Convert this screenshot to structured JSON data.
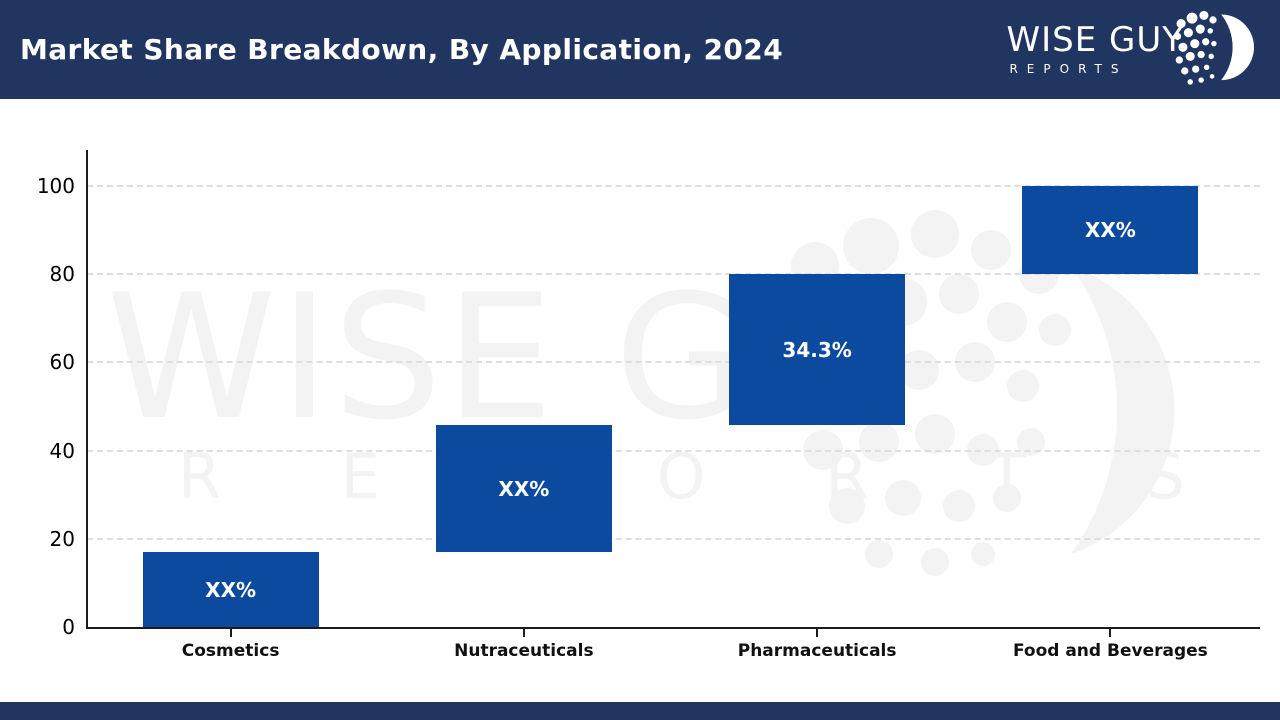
{
  "header": {
    "title": "Market Share Breakdown, By Application, 2024",
    "bg_color": "#213561",
    "logo": {
      "line1": "WISE GUY",
      "line2": "REPORTS"
    }
  },
  "watermark": {
    "line1": "WISE GU",
    "line2": "R E P O R T S"
  },
  "chart_data": {
    "type": "bar",
    "subtype": "waterfall-floating-bars",
    "title": "Market Share Breakdown, By Application, 2024",
    "xlabel": "",
    "ylabel": "",
    "ylim": [
      0,
      108
    ],
    "yticks": [
      0,
      20,
      40,
      60,
      80,
      100
    ],
    "grid": "horizontal dashed",
    "legend": "none",
    "bar_color": "#0b4a9e",
    "label_color": "#ffffff",
    "bars": [
      {
        "category": "Cosmetics",
        "start": 0,
        "end": 17,
        "value": 17,
        "label": "XX%"
      },
      {
        "category": "Nutraceuticals",
        "start": 17,
        "end": 45.7,
        "value": 28.7,
        "label": "XX%"
      },
      {
        "category": "Pharmaceuticals",
        "start": 45.7,
        "end": 80,
        "value": 34.3,
        "label": "34.3%"
      },
      {
        "category": "Food and Beverages",
        "start": 80,
        "end": 100,
        "value": 20,
        "label": "XX%"
      }
    ]
  }
}
